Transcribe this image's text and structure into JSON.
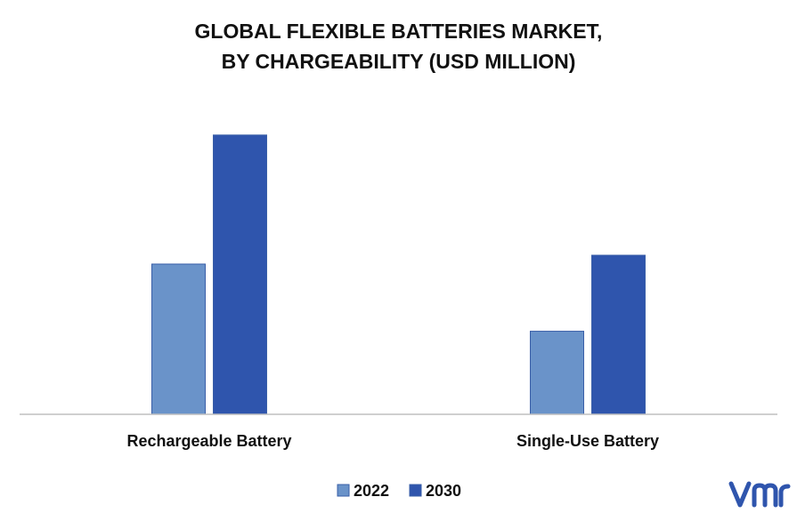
{
  "chart_data": {
    "type": "bar",
    "title_lines": [
      "GLOBAL FLEXIBLE BATTERIES MARKET,",
      "BY CHARGEABILITY (USD MILLION)"
    ],
    "categories": [
      "Rechargeable Battery",
      "Single-Use Battery"
    ],
    "series": [
      {
        "name": "2022",
        "color": "#6a93c9",
        "values": [
          170,
          94
        ]
      },
      {
        "name": "2030",
        "color": "#2f55ad",
        "values": [
          316,
          180
        ]
      }
    ],
    "ylim": [
      0,
      340
    ],
    "grid": false,
    "legend_position": "bottom"
  },
  "colors": {
    "axis": "#bfbfbf",
    "text": "#111111",
    "logo": "#2f55ad"
  }
}
